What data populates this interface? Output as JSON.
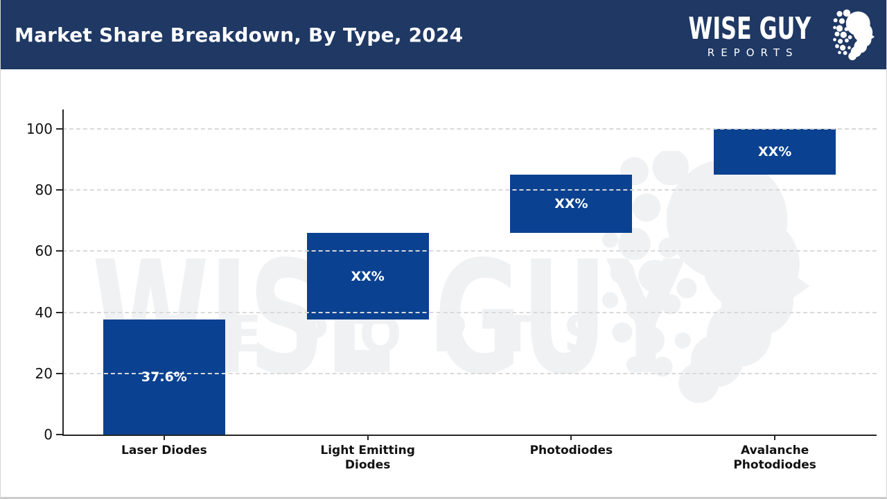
{
  "header": {
    "title": "Market Share Breakdown, By Type, 2024",
    "logo": {
      "line1": "WISE GUY",
      "line2": "REPORTS"
    }
  },
  "watermark": {
    "line1": "WISE GUY",
    "line2": "REPORTS"
  },
  "colors": {
    "header_bg": "#1f3864",
    "bar": "#0a4191",
    "grid": "#d9d9d9",
    "axis": "#262626",
    "watermark": "#f0f1f3",
    "tick_text": "#111111",
    "bar_label_text": "#ffffff"
  },
  "chart_data": {
    "type": "bar",
    "subtype": "floating-waterfall",
    "title": "Market Share Breakdown, By Type, 2024",
    "categories": [
      "Laser Diodes",
      "Light Emitting Diodes",
      "Photodiodes",
      "Avalanche Photodiodes"
    ],
    "series": [
      {
        "name": "Market Share",
        "segments": [
          {
            "category": "Laser Diodes",
            "start": 0,
            "end": 37.6,
            "label": "37.6%"
          },
          {
            "category": "Light Emitting Diodes",
            "start": 37.6,
            "end": 66,
            "label": "XX%"
          },
          {
            "category": "Photodiodes",
            "start": 66,
            "end": 85,
            "label": "XX%"
          },
          {
            "category": "Avalanche Photodiodes",
            "start": 85,
            "end": 100,
            "label": "XX%"
          }
        ]
      }
    ],
    "xlabel": "",
    "ylabel": "",
    "ylim": [
      0,
      106
    ],
    "yticks": [
      0,
      20,
      40,
      60,
      80,
      100
    ],
    "grid": "horizontal-dashed",
    "legend": false
  }
}
